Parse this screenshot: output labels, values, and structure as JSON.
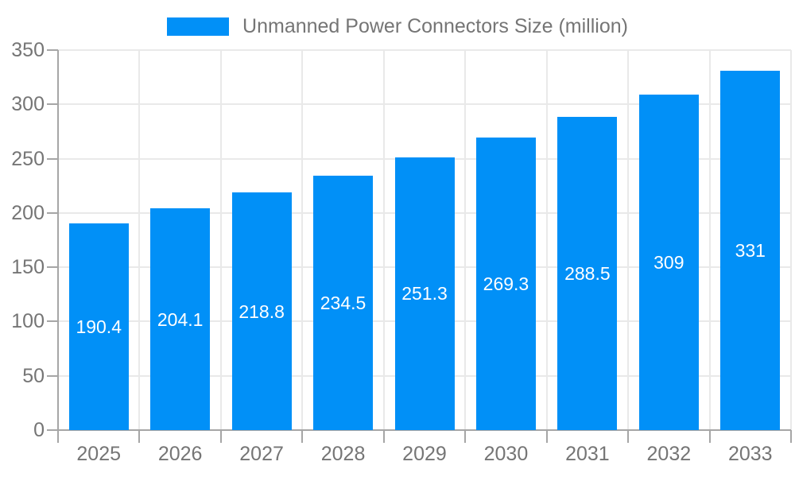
{
  "legend": {
    "label": "Unmanned Power Connectors Size (million)"
  },
  "chart_data": {
    "type": "bar",
    "title": "Unmanned Power Connectors Size (million)",
    "series_name": "Unmanned Power Connectors Size (million)",
    "categories": [
      "2025",
      "2026",
      "2027",
      "2028",
      "2029",
      "2030",
      "2031",
      "2032",
      "2033"
    ],
    "values": [
      190.4,
      204.1,
      218.8,
      234.5,
      251.3,
      269.3,
      288.5,
      309,
      331
    ],
    "value_labels": [
      "190.4",
      "204.1",
      "218.8",
      "234.5",
      "251.3",
      "269.3",
      "288.5",
      "309",
      "331"
    ],
    "xlabel": "",
    "ylabel": "",
    "ylim": [
      0,
      350
    ],
    "yticks": [
      0,
      50,
      100,
      150,
      200,
      250,
      300,
      350
    ],
    "grid": true,
    "legend_position": "top-center",
    "bar_color": "#0190f7",
    "value_label_color": "#ffffff",
    "axis_text_color": "#757575"
  }
}
